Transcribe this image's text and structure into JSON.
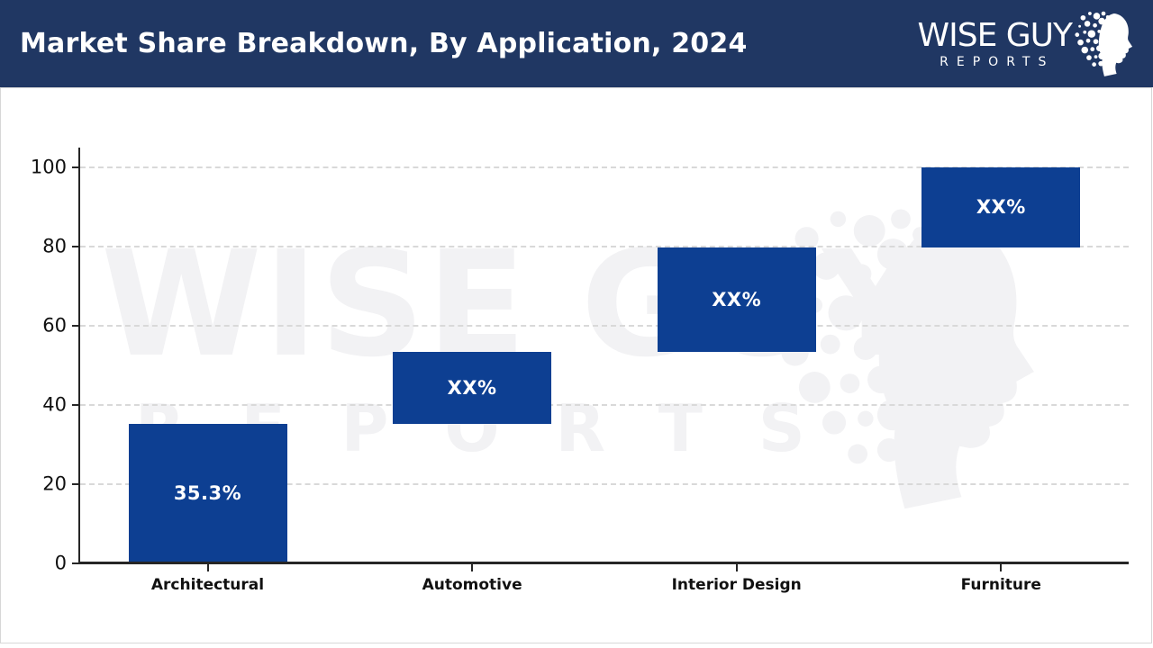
{
  "header": {
    "title": "Market Share Breakdown, By Application, 2024",
    "logo": {
      "line1": "WISE GUY",
      "line2": "REPORTS"
    }
  },
  "watermark": {
    "line1": "WISE GUY",
    "line2": "REPORTS"
  },
  "colors": {
    "header_bg": "#203763",
    "bar": "#0d3f92",
    "bar_label": "#ffffff",
    "axis": "#262626",
    "grid": "#d9d9d9",
    "tick_text": "#111111",
    "watermark": "#f2f2f4",
    "card_border": "#d7d7d7"
  },
  "chart_data": {
    "type": "bar",
    "subtype": "waterfall",
    "title": "Market Share Breakdown, By Application, 2024",
    "xlabel": "",
    "ylabel": "",
    "categories": [
      "Architectural",
      "Automotive",
      "Interior Design",
      "Furniture"
    ],
    "segments": [
      {
        "category": "Architectural",
        "start": 0,
        "end": 35.3,
        "label": "35.3%"
      },
      {
        "category": "Automotive",
        "start": 35.3,
        "end": 53.3,
        "label": "XX%"
      },
      {
        "category": "Interior Design",
        "start": 53.3,
        "end": 79.8,
        "label": "XX%"
      },
      {
        "category": "Furniture",
        "start": 79.8,
        "end": 100,
        "label": "XX%"
      }
    ],
    "yticks": [
      0,
      20,
      40,
      60,
      80,
      100
    ],
    "ylim": [
      0,
      105
    ],
    "grid": "horizontal-dashed",
    "legend": "none",
    "watermark_text": "WISE GUY REPORTS"
  }
}
